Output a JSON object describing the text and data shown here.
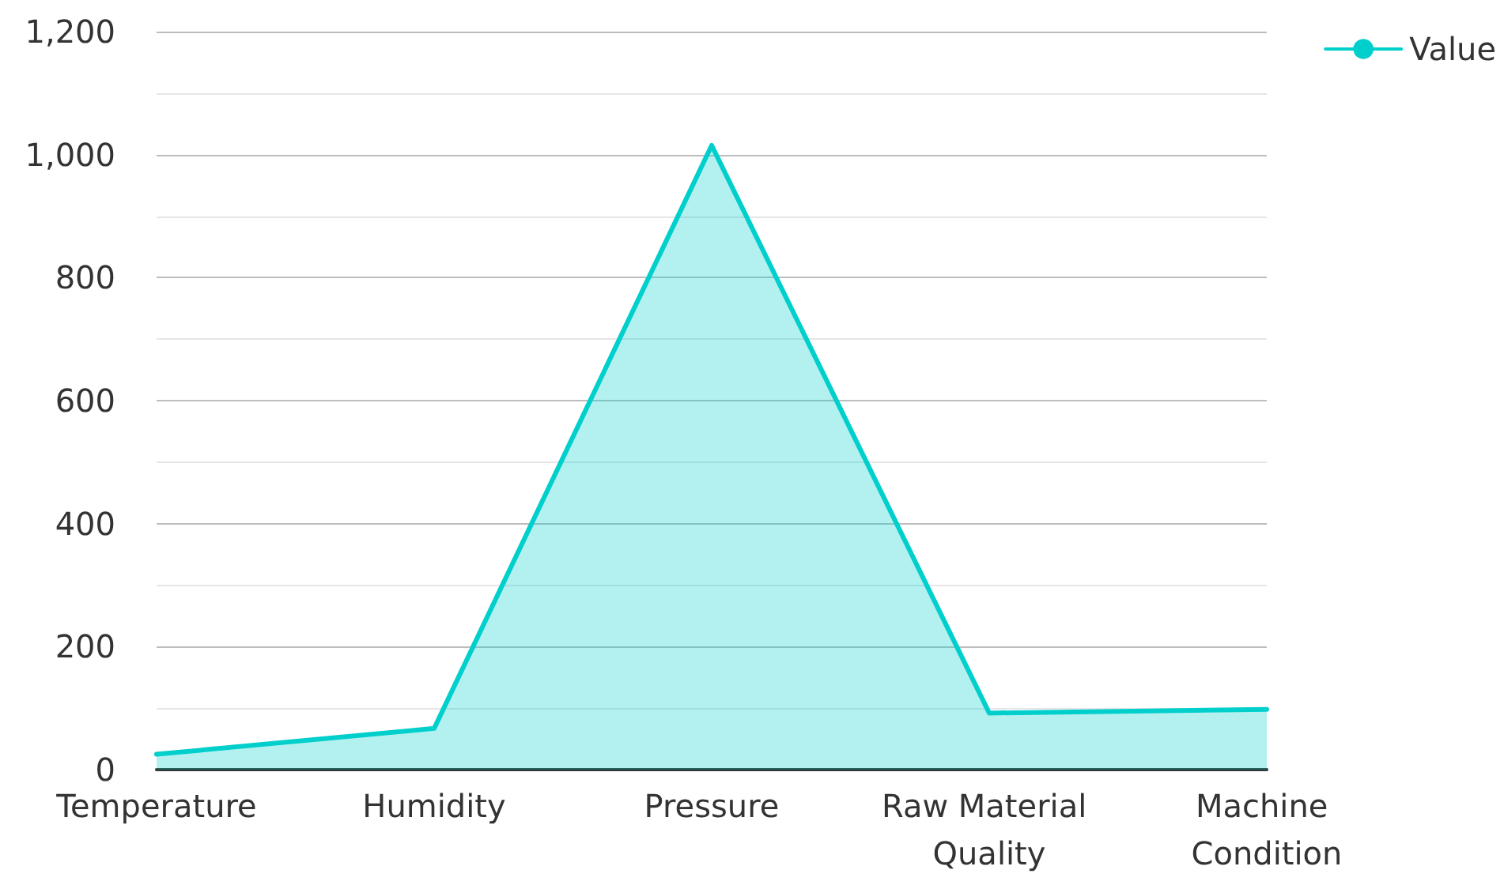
{
  "chart_data": {
    "type": "area",
    "categories": [
      "Temperature",
      "Humidity",
      "Pressure",
      "Raw Material Quality",
      "Machine Condition"
    ],
    "series": [
      {
        "name": "Value",
        "color": "#00cfcc",
        "values": [
          25,
          67,
          1015,
          92,
          98
        ]
      }
    ],
    "ylim": [
      0,
      1200
    ],
    "yticks": [
      0,
      {
        "value": 100,
        "label": null
      },
      200,
      {
        "value": 300,
        "label": null
      },
      400,
      {
        "value": 500,
        "label": null
      },
      600,
      {
        "value": 700,
        "label": null
      },
      800,
      {
        "value": 900,
        "label": null
      },
      {
        "value": 1000,
        "label": "1,000"
      },
      {
        "value": 1100,
        "label": null
      },
      {
        "value": 1200,
        "label": "1,200"
      }
    ],
    "grid": "y",
    "legend": "top right",
    "marker": "none",
    "line_style": "solid"
  }
}
